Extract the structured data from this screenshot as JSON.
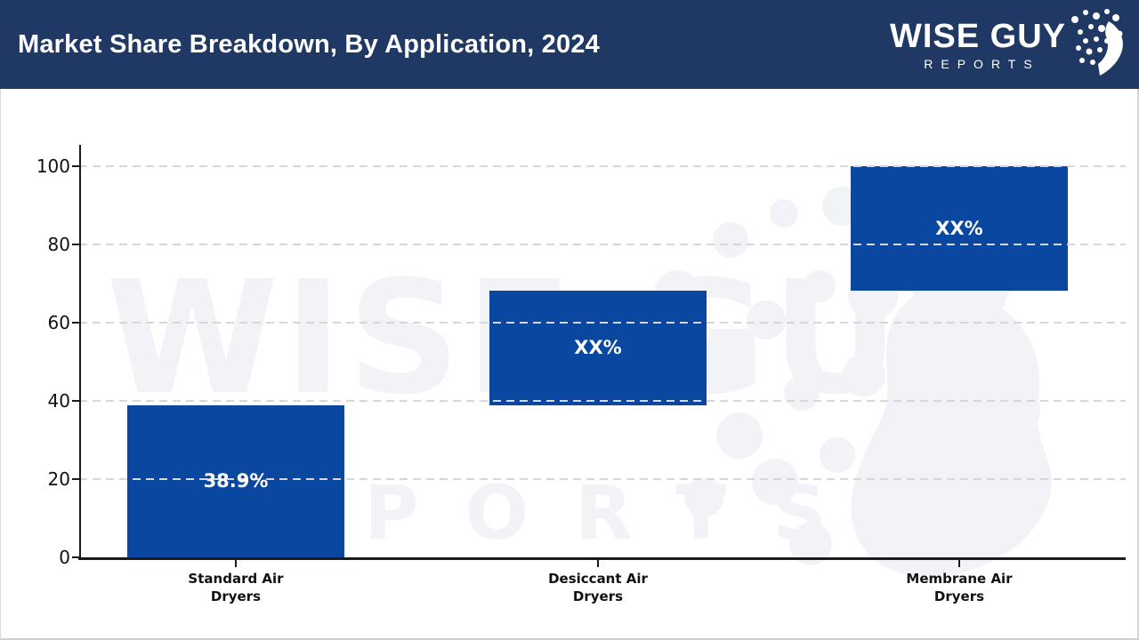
{
  "header": {
    "title": "Market Share Breakdown, By Application, 2024",
    "logo": {
      "line1": "WISE GUY",
      "line2": "REPORTS"
    }
  },
  "watermark": {
    "line1": "WISE GUY",
    "line2": "REPORTS"
  },
  "colors": {
    "header_bg": "#1f3864",
    "bar": "#0a47a0",
    "grid": "#d7d7d7",
    "axis": "#1a1a1a",
    "bar_label": "#ffffff",
    "watermark": "#f2f3f6"
  },
  "chart_data": {
    "type": "bar",
    "subtype": "waterfall",
    "title": "Market Share Breakdown, By Application, 2024",
    "categories": [
      [
        "Standard Air",
        "Dryers"
      ],
      [
        "Desiccant Air",
        "Dryers"
      ],
      [
        "Membrane Air",
        "Dryers"
      ]
    ],
    "series": [
      {
        "name": "Market Share",
        "segments": [
          {
            "category": "Standard Air Dryers",
            "start": 0,
            "end": 38.9,
            "label": "38.9%"
          },
          {
            "category": "Desiccant Air Dryers",
            "start": 38.9,
            "end": 68.2,
            "label": "XX%"
          },
          {
            "category": "Membrane Air Dryers",
            "start": 68.2,
            "end": 100,
            "label": "XX%"
          }
        ]
      }
    ],
    "xlabel": "",
    "ylabel": "",
    "ylim": [
      0,
      100
    ],
    "yticks": [
      0,
      20,
      40,
      60,
      80,
      100
    ],
    "grid": "horizontal-dashed",
    "legend_position": "none"
  }
}
